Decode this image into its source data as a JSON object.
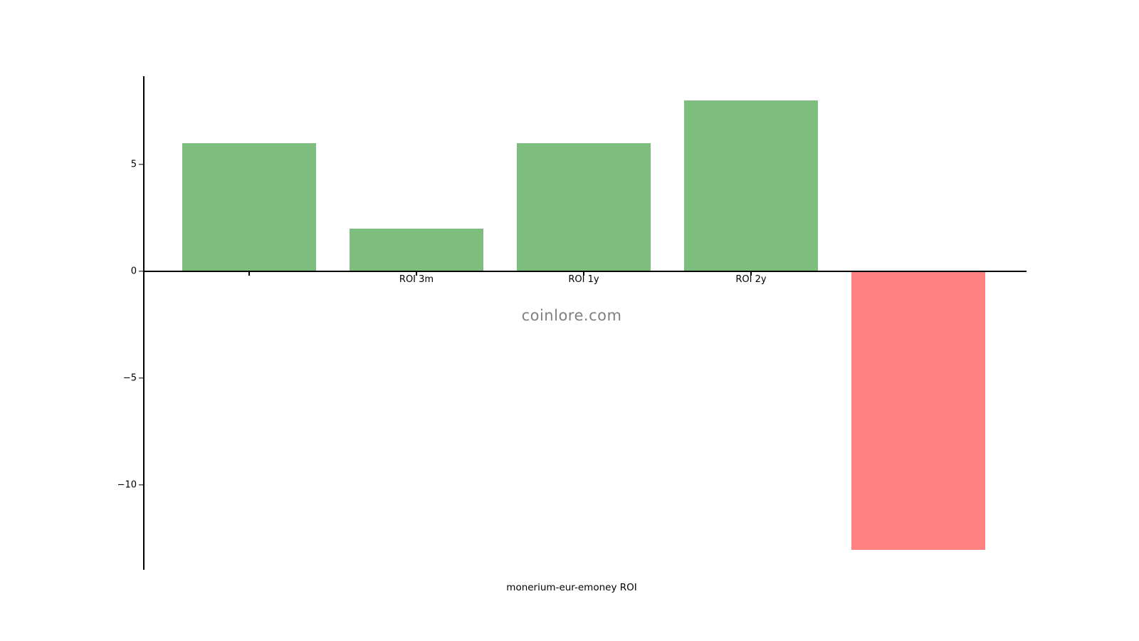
{
  "watermark": "coinlore.com",
  "chart_data": {
    "type": "bar",
    "categories": [
      "",
      "ROI 3m",
      "ROI 1y",
      "ROI 2y",
      ""
    ],
    "category_names": [
      "roi-first",
      "roi-3m",
      "roi-1y",
      "roi-2y",
      "roi-last"
    ],
    "values": [
      6,
      2,
      6,
      8,
      -13
    ],
    "title": "",
    "xlabel": "monerium-eur-emoney ROI",
    "ylabel": "",
    "yticks": [
      5,
      0,
      -5,
      -10
    ],
    "ylim": [
      -14,
      9.1
    ],
    "grid": false,
    "legend": null,
    "colors": {
      "positive": "#7dbd7d",
      "negative": "#ff8080",
      "axis": "#000000",
      "watermark": "#808080",
      "text": "#000000"
    }
  }
}
